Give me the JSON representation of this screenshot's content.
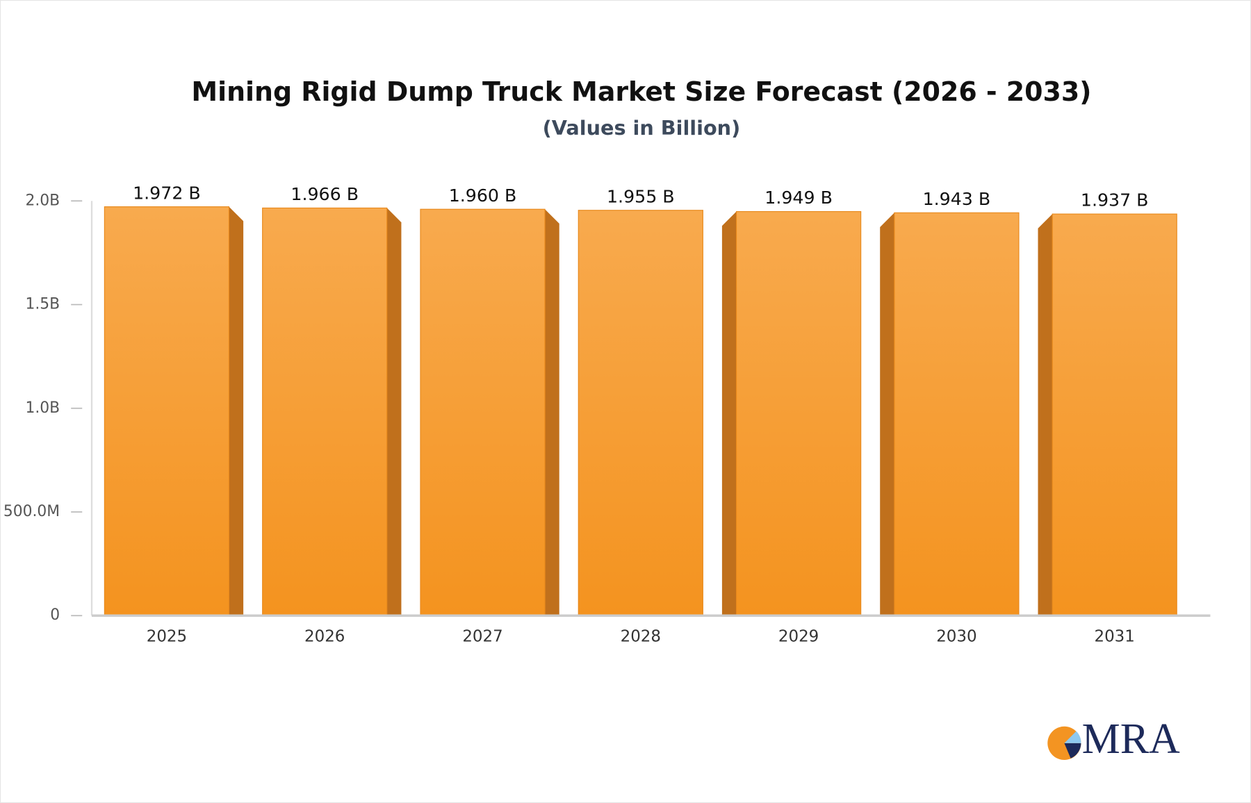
{
  "chart_data": {
    "type": "bar3d",
    "title": "Mining Rigid Dump Truck Market Size Forecast (2026 - 2033)",
    "subtitle": "(Values in Billion)",
    "categories": [
      "2025",
      "2026",
      "2027",
      "2028",
      "2029",
      "2030",
      "2031"
    ],
    "values": [
      1.972,
      1.966,
      1.96,
      1.955,
      1.949,
      1.943,
      1.937
    ],
    "value_labels": [
      "1.972 B",
      "1.966 B",
      "1.960 B",
      "1.955 B",
      "1.949 B",
      "1.943 B",
      "1.937 B"
    ],
    "color": "#f59a2c",
    "ylim": [
      0,
      2.0
    ],
    "yticks": [
      0,
      {
        "value": 0.5,
        "label": "500.0M"
      },
      {
        "value": 1.0,
        "label": "1.0B"
      },
      {
        "value": 1.5,
        "label": "1.5B"
      },
      {
        "value": 2.0,
        "label": "2.0B"
      }
    ]
  },
  "logo": {
    "text": "MRA"
  }
}
